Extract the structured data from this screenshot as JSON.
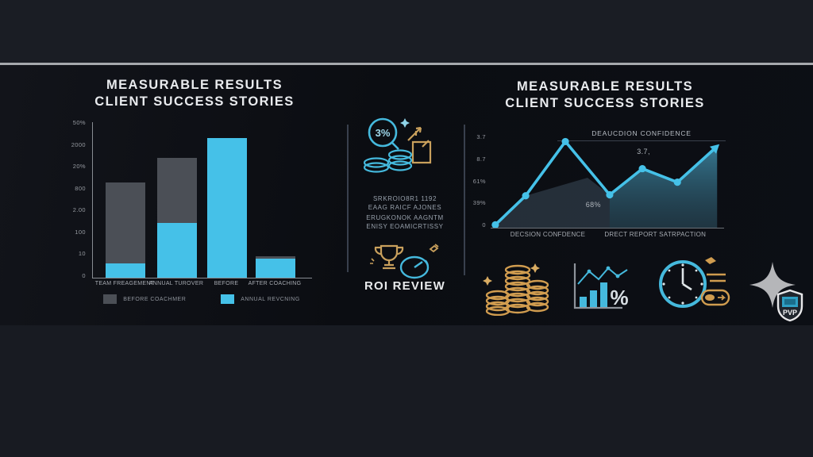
{
  "left_panel": {
    "title_line1": "MEASURABLE RESULTS",
    "title_line2": "CLIENT SUCCESS STORIES"
  },
  "middle_panel": {
    "magnifier_value": "3%",
    "block1_line1": "SRKROIO8R1 1192",
    "block1_line2": "EAAG RAICF AJONES",
    "block2_line1": "ERUGKONOK AAGNTM",
    "block2_line2": "ENISY EOAMICRTISSY",
    "roi_label": "ROI REVIEW"
  },
  "right_panel": {
    "title_line1": "MEASURABLE RESULTS",
    "title_line2": "CLIENT SUCCESS STORIES",
    "chart_subtitle": "DEAUCDION CONFIDENCE",
    "percent_glyph": "%",
    "badge_text": "PVP"
  },
  "chart_data": [
    {
      "type": "bar",
      "title": "MEASURABLE RESULTS CLIENT SUCCESS STORIES",
      "stacked": true,
      "categories": [
        "TEAM FREAGEMENT",
        "ANNUAL TUROVER",
        "BEFORE",
        "AFTER COACHING"
      ],
      "series": [
        {
          "name": "ANNUAL REVCNING",
          "color": "#45c1e8",
          "values": [
            9,
            35,
            90,
            12
          ]
        },
        {
          "name": "BEFORE COACHMER",
          "color": "#4b4f56",
          "values": [
            52,
            42,
            0,
            2
          ]
        }
      ],
      "y_tick_labels": [
        "50%",
        "2000",
        "20%",
        "800",
        "2.00",
        "100",
        "10",
        "0"
      ],
      "ylim": [
        0,
        100
      ],
      "legend": [
        {
          "label": "BEFORE COACHMER",
          "color": "#4b4f56"
        },
        {
          "label": "ANNUAL REVCNING",
          "color": "#45c1e8"
        }
      ],
      "grid": false
    },
    {
      "type": "line",
      "title": "DEAUCDION CONFIDENCE",
      "line_color": "#45c1e8",
      "points": [
        {
          "x": 2,
          "y": 3
        },
        {
          "x": 15,
          "y": 33
        },
        {
          "x": 32,
          "y": 89
        },
        {
          "x": 51,
          "y": 34
        },
        {
          "x": 65,
          "y": 61
        },
        {
          "x": 80,
          "y": 47
        },
        {
          "x": 97,
          "y": 84
        }
      ],
      "area_dark": [
        [
          2,
          3
        ],
        [
          15,
          33
        ],
        [
          41.5,
          51.6
        ],
        [
          51,
          34
        ],
        [
          65,
          61
        ],
        [
          80,
          47
        ],
        [
          97,
          84
        ],
        [
          97,
          0
        ],
        [
          2,
          0
        ]
      ],
      "area_teal": [
        [
          51,
          34
        ],
        [
          65,
          61
        ],
        [
          80,
          47
        ],
        [
          97,
          84
        ],
        [
          97,
          0
        ],
        [
          51,
          0
        ]
      ],
      "y_tick_labels": [
        "3.7",
        "8.7",
        "61%",
        "39%",
        "0"
      ],
      "x_labels": [
        "DECSION CONFDENCE",
        "DRECT REPORT SATRPACTION"
      ],
      "x_label_centers": [
        24.5,
        70.5
      ],
      "annotations": [
        {
          "text": "3.7,",
          "x": 65.5,
          "y": 79
        },
        {
          "text": "68%",
          "x": 44,
          "y": 24
        }
      ],
      "ylim": [
        0,
        100
      ],
      "grid": false,
      "legend_position": "none"
    }
  ]
}
